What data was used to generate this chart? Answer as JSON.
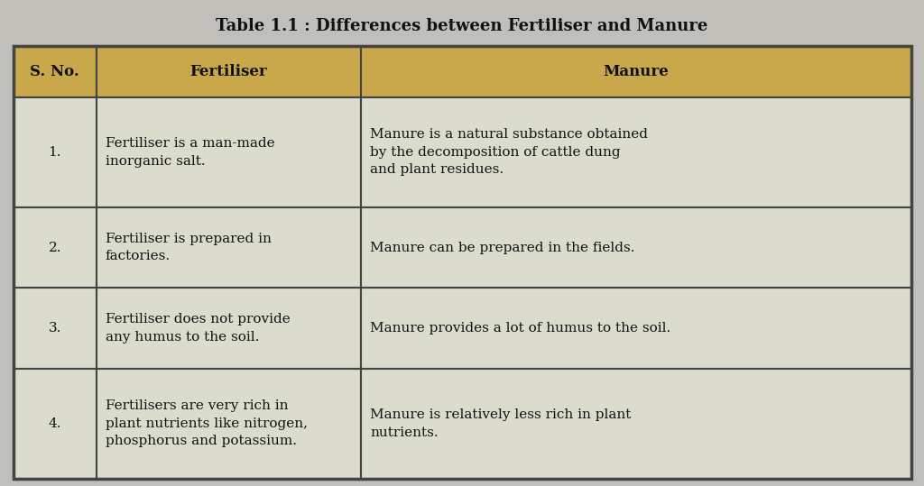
{
  "title": "Table 1.1 : Differences between Fertiliser and Manure",
  "title_fontsize": 13,
  "title_fontweight": "bold",
  "header_bg_color": "#C8A84B",
  "header_text_color": "#111111",
  "row_bg_color": "#DCDCCC",
  "cell_text_color": "#111111",
  "border_color": "#444444",
  "figure_bg": "#C0BFBA",
  "columns": [
    "S. No.",
    "Fertiliser",
    "Manure"
  ],
  "header_fontsize": 12,
  "cell_fontsize": 11,
  "rows": [
    {
      "sno": "1.",
      "fertiliser": "Fertiliser is a man-made\ninorganic salt.",
      "manure": "Manure is a natural substance obtained\nby the decomposition of cattle dung\nand plant residues."
    },
    {
      "sno": "2.",
      "fertiliser": "Fertiliser is prepared in\nfactories.",
      "manure": "Manure can be prepared in the fields."
    },
    {
      "sno": "3.",
      "fertiliser": "Fertiliser does not provide\nany humus to the soil.",
      "manure": "Manure provides a lot of humus to the soil."
    },
    {
      "sno": "4.",
      "fertiliser": "Fertilisers are very rich in\nplant nutrients like nitrogen,\nphosphorus and potassium.",
      "manure": "Manure is relatively less rich in plant\nnutrients."
    }
  ]
}
